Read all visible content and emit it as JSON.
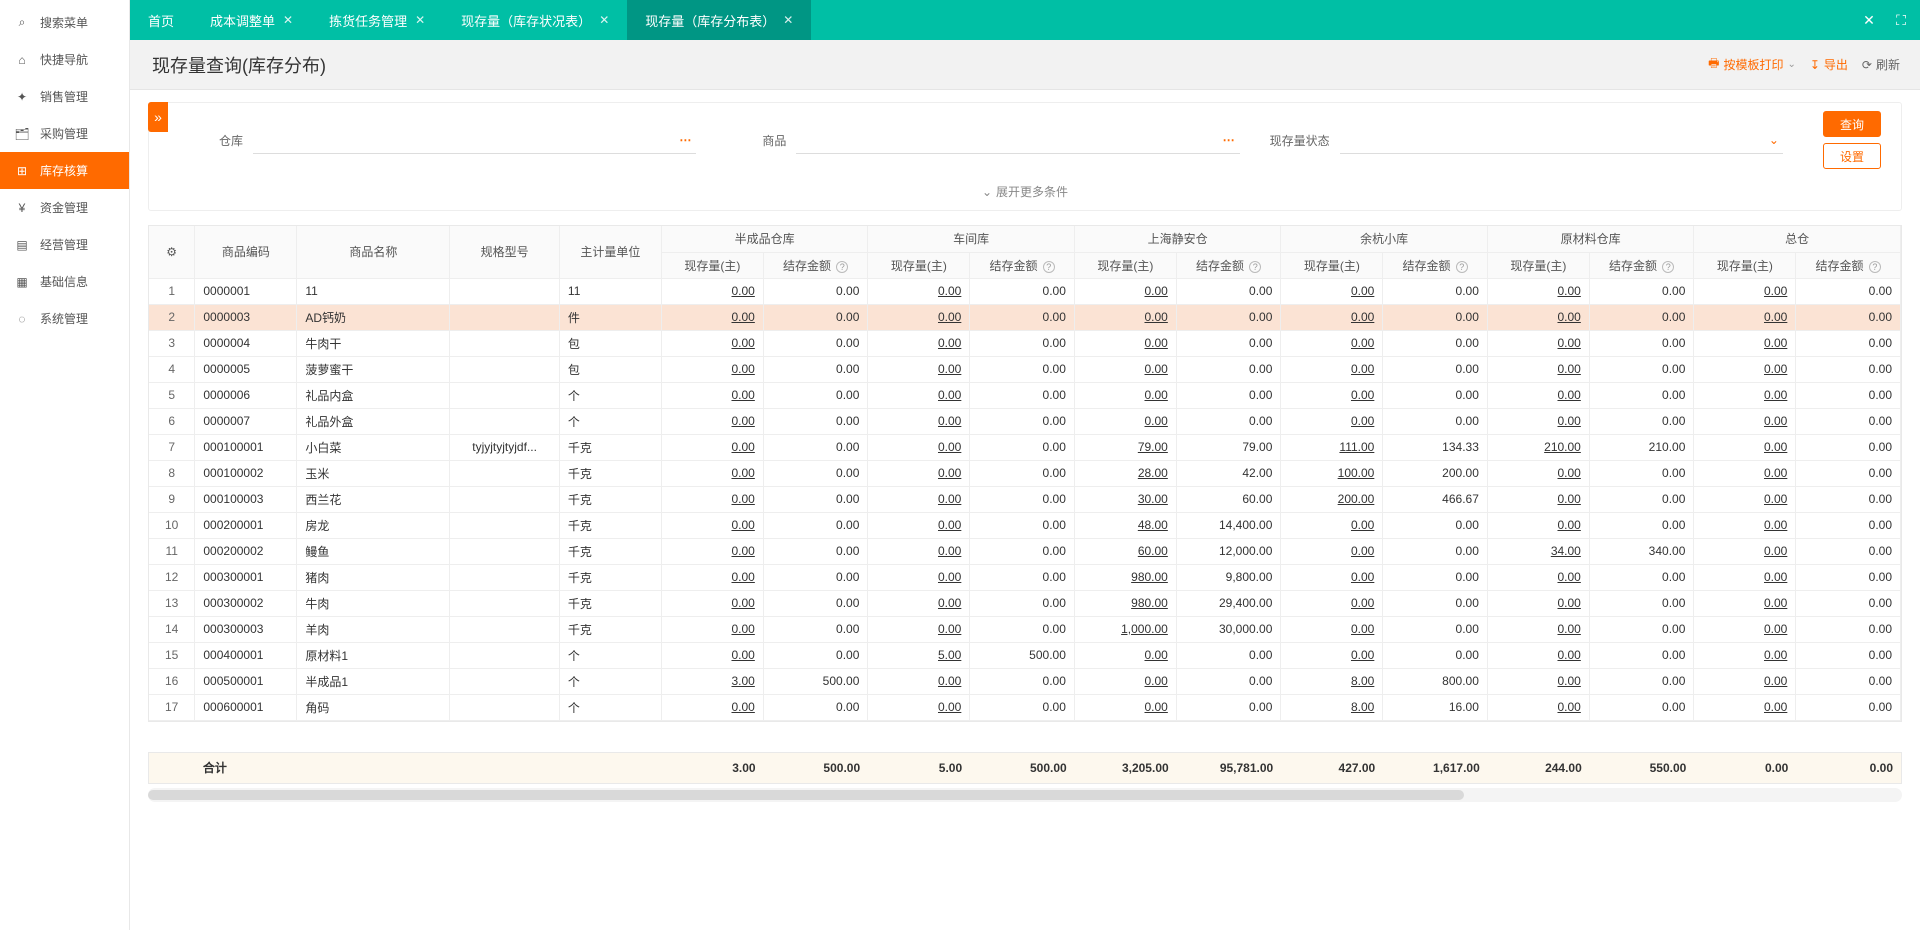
{
  "sidebar": [
    {
      "icon": "search",
      "label": "搜索菜单"
    },
    {
      "icon": "nav",
      "label": "快捷导航"
    },
    {
      "icon": "sale",
      "label": "销售管理"
    },
    {
      "icon": "buy",
      "label": "采购管理"
    },
    {
      "icon": "stock",
      "label": "库存核算",
      "active": true
    },
    {
      "icon": "fund",
      "label": "资金管理"
    },
    {
      "icon": "ops",
      "label": "经营管理"
    },
    {
      "icon": "base",
      "label": "基础信息"
    },
    {
      "icon": "sys",
      "label": "系统管理"
    }
  ],
  "tabs": [
    {
      "label": "首页",
      "closable": false
    },
    {
      "label": "成本调整单",
      "closable": true
    },
    {
      "label": "拣货任务管理",
      "closable": true
    },
    {
      "label": "现存量（库存状况表）",
      "closable": true
    },
    {
      "label": "现存量（库存分布表）",
      "closable": true,
      "active": true
    }
  ],
  "page": {
    "title": "现存量查询(库存分布)",
    "print": "按模板打印",
    "export": "导出",
    "refresh": "刷新"
  },
  "filters": {
    "f1": "仓库",
    "f2": "商品",
    "f3": "现存量状态",
    "query": "查询",
    "settings": "设置",
    "expand": "展开更多条件"
  },
  "warehouses": [
    "半成品仓库",
    "车间库",
    "上海静安仓",
    "余杭小库",
    "原材料仓库",
    "总仓"
  ],
  "subcols": {
    "qty": "现存量(主)",
    "amt": "结存金额"
  },
  "headers": {
    "code": "商品编码",
    "name": "商品名称",
    "spec": "规格型号",
    "unit": "主计量单位"
  },
  "rows": [
    {
      "idx": 1,
      "code": "0000001",
      "name": "11",
      "spec": "",
      "unit": "11",
      "v": [
        [
          "0.00",
          "0.00"
        ],
        [
          "0.00",
          "0.00"
        ],
        [
          "0.00",
          "0.00"
        ],
        [
          "0.00",
          "0.00"
        ],
        [
          "0.00",
          "0.00"
        ],
        [
          "0.00",
          "0.00"
        ]
      ]
    },
    {
      "idx": 2,
      "code": "0000003",
      "name": "AD钙奶",
      "spec": "",
      "unit": "件",
      "hl": true,
      "v": [
        [
          "0.00",
          "0.00"
        ],
        [
          "0.00",
          "0.00"
        ],
        [
          "0.00",
          "0.00"
        ],
        [
          "0.00",
          "0.00"
        ],
        [
          "0.00",
          "0.00"
        ],
        [
          "0.00",
          "0.00"
        ]
      ]
    },
    {
      "idx": 3,
      "code": "0000004",
      "name": "牛肉干",
      "spec": "",
      "unit": "包",
      "v": [
        [
          "0.00",
          "0.00"
        ],
        [
          "0.00",
          "0.00"
        ],
        [
          "0.00",
          "0.00"
        ],
        [
          "0.00",
          "0.00"
        ],
        [
          "0.00",
          "0.00"
        ],
        [
          "0.00",
          "0.00"
        ]
      ]
    },
    {
      "idx": 4,
      "code": "0000005",
      "name": "菠萝蜜干",
      "spec": "",
      "unit": "包",
      "v": [
        [
          "0.00",
          "0.00"
        ],
        [
          "0.00",
          "0.00"
        ],
        [
          "0.00",
          "0.00"
        ],
        [
          "0.00",
          "0.00"
        ],
        [
          "0.00",
          "0.00"
        ],
        [
          "0.00",
          "0.00"
        ]
      ]
    },
    {
      "idx": 5,
      "code": "0000006",
      "name": "礼品内盒",
      "spec": "",
      "unit": "个",
      "v": [
        [
          "0.00",
          "0.00"
        ],
        [
          "0.00",
          "0.00"
        ],
        [
          "0.00",
          "0.00"
        ],
        [
          "0.00",
          "0.00"
        ],
        [
          "0.00",
          "0.00"
        ],
        [
          "0.00",
          "0.00"
        ]
      ]
    },
    {
      "idx": 6,
      "code": "0000007",
      "name": "礼品外盒",
      "spec": "",
      "unit": "个",
      "v": [
        [
          "0.00",
          "0.00"
        ],
        [
          "0.00",
          "0.00"
        ],
        [
          "0.00",
          "0.00"
        ],
        [
          "0.00",
          "0.00"
        ],
        [
          "0.00",
          "0.00"
        ],
        [
          "0.00",
          "0.00"
        ]
      ]
    },
    {
      "idx": 7,
      "code": "000100001",
      "name": "小白菜",
      "spec": "tyjyjtyjtyjdf...",
      "unit": "千克",
      "v": [
        [
          "0.00",
          "0.00"
        ],
        [
          "0.00",
          "0.00"
        ],
        [
          "79.00",
          "79.00"
        ],
        [
          "111.00",
          "134.33"
        ],
        [
          "210.00",
          "210.00"
        ],
        [
          "0.00",
          "0.00"
        ]
      ]
    },
    {
      "idx": 8,
      "code": "000100002",
      "name": "玉米",
      "spec": "",
      "unit": "千克",
      "v": [
        [
          "0.00",
          "0.00"
        ],
        [
          "0.00",
          "0.00"
        ],
        [
          "28.00",
          "42.00"
        ],
        [
          "100.00",
          "200.00"
        ],
        [
          "0.00",
          "0.00"
        ],
        [
          "0.00",
          "0.00"
        ]
      ]
    },
    {
      "idx": 9,
      "code": "000100003",
      "name": "西兰花",
      "spec": "",
      "unit": "千克",
      "v": [
        [
          "0.00",
          "0.00"
        ],
        [
          "0.00",
          "0.00"
        ],
        [
          "30.00",
          "60.00"
        ],
        [
          "200.00",
          "466.67"
        ],
        [
          "0.00",
          "0.00"
        ],
        [
          "0.00",
          "0.00"
        ]
      ]
    },
    {
      "idx": 10,
      "code": "000200001",
      "name": "房龙",
      "spec": "",
      "unit": "千克",
      "v": [
        [
          "0.00",
          "0.00"
        ],
        [
          "0.00",
          "0.00"
        ],
        [
          "48.00",
          "14,400.00"
        ],
        [
          "0.00",
          "0.00"
        ],
        [
          "0.00",
          "0.00"
        ],
        [
          "0.00",
          "0.00"
        ]
      ]
    },
    {
      "idx": 11,
      "code": "000200002",
      "name": "鳗鱼",
      "spec": "",
      "unit": "千克",
      "v": [
        [
          "0.00",
          "0.00"
        ],
        [
          "0.00",
          "0.00"
        ],
        [
          "60.00",
          "12,000.00"
        ],
        [
          "0.00",
          "0.00"
        ],
        [
          "34.00",
          "340.00"
        ],
        [
          "0.00",
          "0.00"
        ]
      ]
    },
    {
      "idx": 12,
      "code": "000300001",
      "name": "猪肉",
      "spec": "",
      "unit": "千克",
      "v": [
        [
          "0.00",
          "0.00"
        ],
        [
          "0.00",
          "0.00"
        ],
        [
          "980.00",
          "9,800.00"
        ],
        [
          "0.00",
          "0.00"
        ],
        [
          "0.00",
          "0.00"
        ],
        [
          "0.00",
          "0.00"
        ]
      ]
    },
    {
      "idx": 13,
      "code": "000300002",
      "name": "牛肉",
      "spec": "",
      "unit": "千克",
      "v": [
        [
          "0.00",
          "0.00"
        ],
        [
          "0.00",
          "0.00"
        ],
        [
          "980.00",
          "29,400.00"
        ],
        [
          "0.00",
          "0.00"
        ],
        [
          "0.00",
          "0.00"
        ],
        [
          "0.00",
          "0.00"
        ]
      ]
    },
    {
      "idx": 14,
      "code": "000300003",
      "name": "羊肉",
      "spec": "",
      "unit": "千克",
      "v": [
        [
          "0.00",
          "0.00"
        ],
        [
          "0.00",
          "0.00"
        ],
        [
          "1,000.00",
          "30,000.00"
        ],
        [
          "0.00",
          "0.00"
        ],
        [
          "0.00",
          "0.00"
        ],
        [
          "0.00",
          "0.00"
        ]
      ]
    },
    {
      "idx": 15,
      "code": "000400001",
      "name": "原材料1",
      "spec": "",
      "unit": "个",
      "v": [
        [
          "0.00",
          "0.00"
        ],
        [
          "5.00",
          "500.00"
        ],
        [
          "0.00",
          "0.00"
        ],
        [
          "0.00",
          "0.00"
        ],
        [
          "0.00",
          "0.00"
        ],
        [
          "0.00",
          "0.00"
        ]
      ]
    },
    {
      "idx": 16,
      "code": "000500001",
      "name": "半成品1",
      "spec": "",
      "unit": "个",
      "v": [
        [
          "3.00",
          "500.00"
        ],
        [
          "0.00",
          "0.00"
        ],
        [
          "0.00",
          "0.00"
        ],
        [
          "8.00",
          "800.00"
        ],
        [
          "0.00",
          "0.00"
        ],
        [
          "0.00",
          "0.00"
        ]
      ]
    },
    {
      "idx": 17,
      "code": "000600001",
      "name": "角码",
      "spec": "",
      "unit": "个",
      "v": [
        [
          "0.00",
          "0.00"
        ],
        [
          "0.00",
          "0.00"
        ],
        [
          "0.00",
          "0.00"
        ],
        [
          "8.00",
          "16.00"
        ],
        [
          "0.00",
          "0.00"
        ],
        [
          "0.00",
          "0.00"
        ]
      ]
    }
  ],
  "totals": {
    "label": "合计",
    "v": [
      [
        "3.00",
        "500.00"
      ],
      [
        "5.00",
        "500.00"
      ],
      [
        "3,205.00",
        "95,781.00"
      ],
      [
        "427.00",
        "1,617.00"
      ],
      [
        "244.00",
        "550.00"
      ],
      [
        "0.00",
        "0.00"
      ]
    ]
  },
  "colors": {
    "accent": "#ff6a00",
    "teal": "#00bfa5",
    "tealDark": "#009684",
    "rowHl": "#fbe3d4",
    "footBg": "#fdf8ee"
  },
  "colwidths": {
    "idx": 36,
    "code": 80,
    "name": 120,
    "spec": 86,
    "unit": 80,
    "qty": 80,
    "amt": 82
  }
}
